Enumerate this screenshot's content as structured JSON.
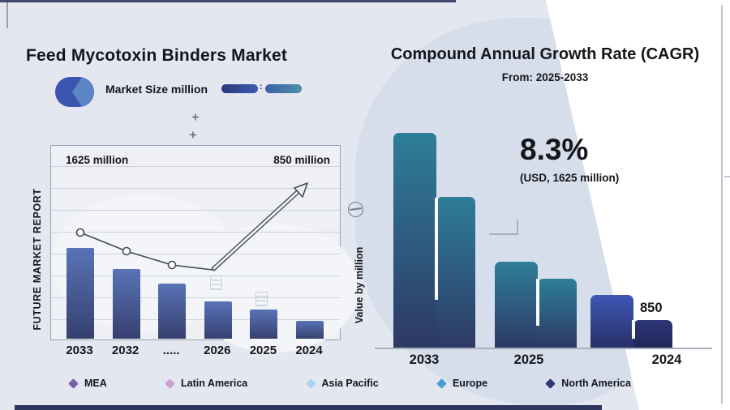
{
  "page": {
    "background": "#e4e7ef",
    "accent_navy": "#2e355f",
    "blob_color": "#d7deeb"
  },
  "icons": {
    "market_size_pill": "cylinder-pill",
    "range_pills_separator": ":",
    "legend_marker": "diamond",
    "trend_arrow": "outlined-up-right-arrow",
    "plus_doodle": "+",
    "circle_doodle": "circle-with-line"
  },
  "left": {
    "title": "Feed Mycotoxin Binders Market",
    "legend_label": "Market Size million",
    "pill_separator": ":",
    "plus_mark": "+",
    "side_label": "FUTURE MARKET REPORT"
  },
  "right": {
    "title": "Compound Annual Growth Rate (CAGR)",
    "subtitle": "From: 2025-2033",
    "cagr_value": "8.3%",
    "cagr_note": "(USD, 1625 million)",
    "ylabel": "Value by million"
  },
  "bottom_legend": [
    {
      "label": "MEA",
      "color": "#7a5fa8"
    },
    {
      "label": "Latin America",
      "color": "#c9a3d4"
    },
    {
      "label": "Asia Pacific",
      "color": "#a9d3ee"
    },
    {
      "label": "Europe",
      "color": "#4e9bd8"
    },
    {
      "label": "North America",
      "color": "#2c3a72"
    }
  ],
  "chart_data": [
    {
      "type": "bar",
      "title": "Feed Mycotoxin Binders Market",
      "series_label": "Market Size million",
      "annotation_left": "1625 million",
      "annotation_right": "850 million",
      "categories": [
        "2033",
        "2032",
        ".....",
        "2026",
        "2025",
        "2024"
      ],
      "relative_heights_pct": [
        100,
        77,
        61,
        41,
        32,
        20
      ],
      "known_values": {
        "2033": "1625 million",
        "2024": "850 million"
      },
      "bar_gradient": [
        "#5973b6",
        "#36406f"
      ],
      "ylabel_side": "FUTURE MARKET REPORT",
      "grid": "horizontal",
      "trend_annotation": "declining marker line over 2033-2026 with outlined arrow rising toward 850 million"
    },
    {
      "type": "grouped-bar",
      "title": "Compound Annual Growth Rate (CAGR)",
      "period": "From: 2025-2033",
      "cagr_pct": 8.3,
      "base_value_note": "(USD, 1625 million)",
      "ylabel": "Value by million",
      "categories": [
        "2033",
        "2025",
        "2024"
      ],
      "series": [
        {
          "name": "bar-a",
          "heights_pct": [
            100,
            40,
            24.5
          ],
          "gradients": [
            [
              "#2e7e99",
              "#2d3964"
            ],
            [
              "#2e7e99",
              "#2d3964"
            ],
            [
              "#3e57b4",
              "#283068"
            ]
          ]
        },
        {
          "name": "bar-b",
          "heights_pct": [
            70,
            32,
            13
          ],
          "gradients": [
            [
              "#2e7e99",
              "#2d3964"
            ],
            [
              "#2e7e99",
              "#2d3964"
            ],
            [
              "#2e3876",
              "#20265a"
            ]
          ]
        }
      ],
      "data_labels": [
        {
          "category": "2024",
          "text": "850"
        }
      ],
      "legend_position": "bottom",
      "grid": "off"
    }
  ]
}
